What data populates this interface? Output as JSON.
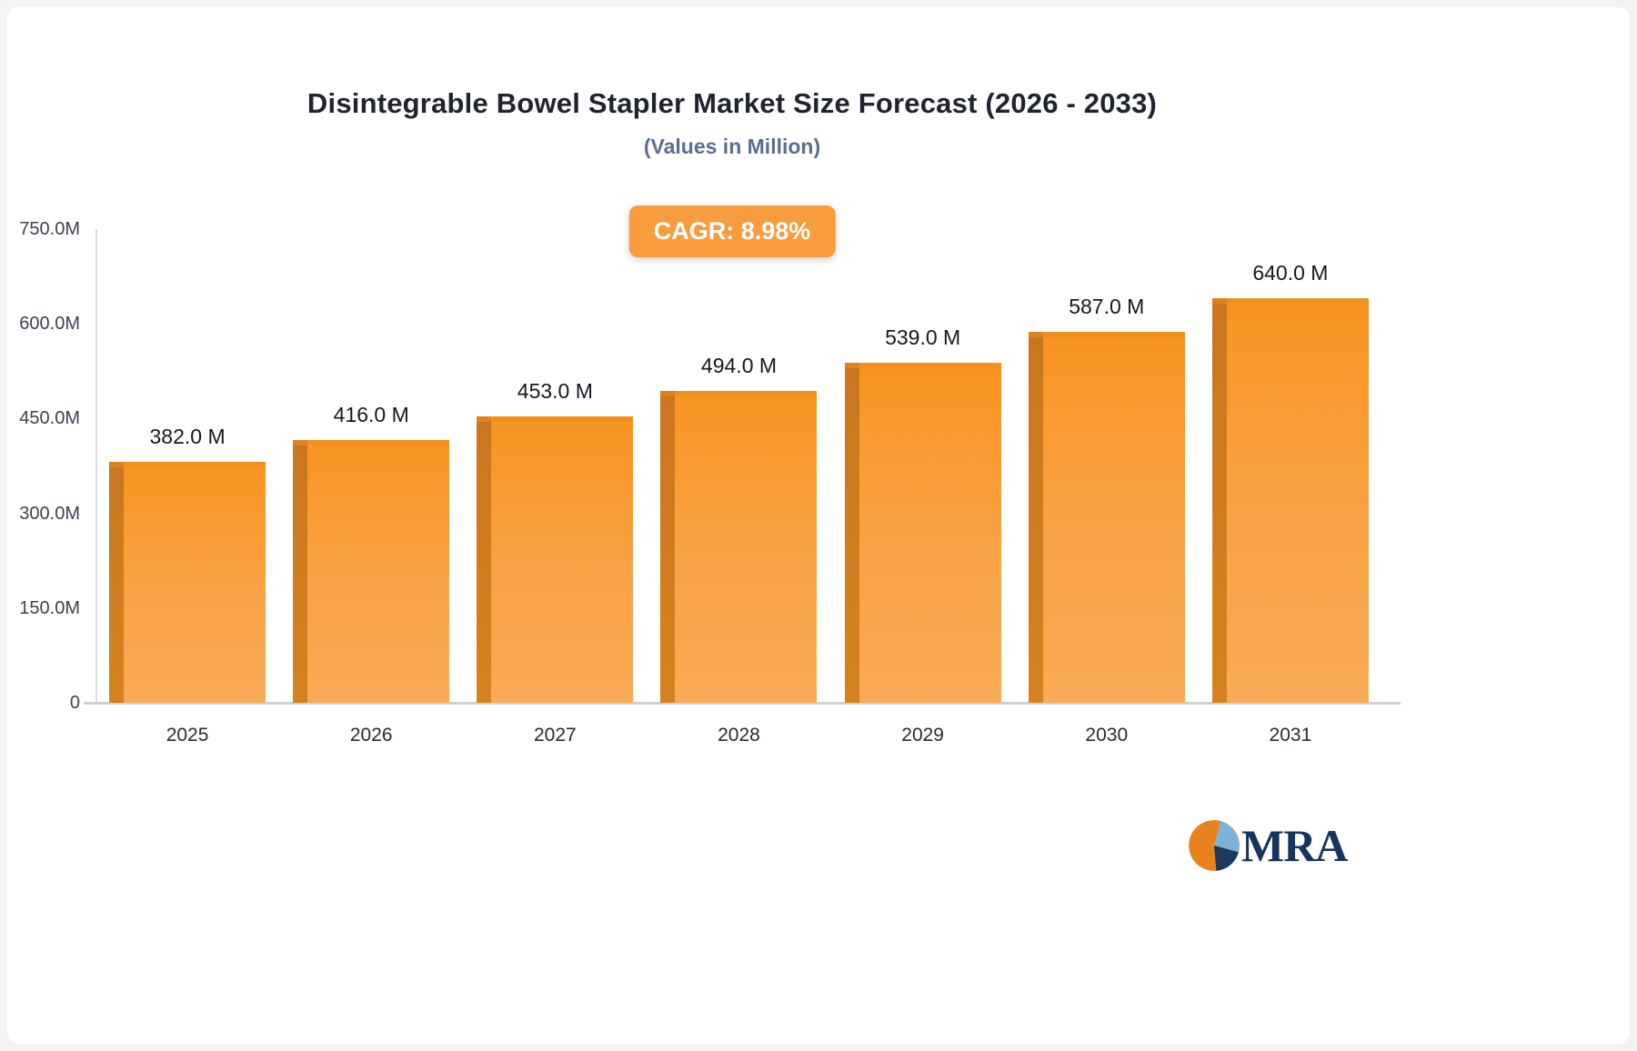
{
  "header": {
    "title": "Disintegrable Bowel Stapler Market Size Forecast (2026 - 2033)",
    "subtitle": "(Values in Million)"
  },
  "badge": {
    "label": "CAGR: 8.98%",
    "color": "#f89c3d"
  },
  "chart_data": {
    "type": "bar",
    "title": "Disintegrable Bowel Stapler Market Size Forecast (2026 - 2033)",
    "subtitle": "(Values in Million)",
    "categories": [
      "2025",
      "2026",
      "2027",
      "2028",
      "2029",
      "2030",
      "2031"
    ],
    "values": [
      382.0,
      416.0,
      453.0,
      494.0,
      539.0,
      587.0,
      640.0
    ],
    "value_labels": [
      "382.0 M",
      "416.0 M",
      "453.0 M",
      "494.0 M",
      "539.0 M",
      "587.0 M",
      "640.0 M"
    ],
    "xlabel": "",
    "ylabel": "",
    "ylim": [
      0,
      750
    ],
    "yticks": [
      0,
      150,
      300,
      450,
      600,
      750
    ],
    "ytick_labels": [
      "0",
      "150.0M",
      "300.0M",
      "450.0M",
      "600.0M",
      "750.0M"
    ],
    "grid": false,
    "legend": false,
    "bar_color": "#f79a2e",
    "bar_side_color": "#cd7b21",
    "cagr": "CAGR: 8.98%"
  },
  "logo": {
    "text": "MRA",
    "wedge_orange": "#e8821e",
    "wedge_blue": "#7fb3d5",
    "wedge_navy": "#1b3a5c"
  }
}
